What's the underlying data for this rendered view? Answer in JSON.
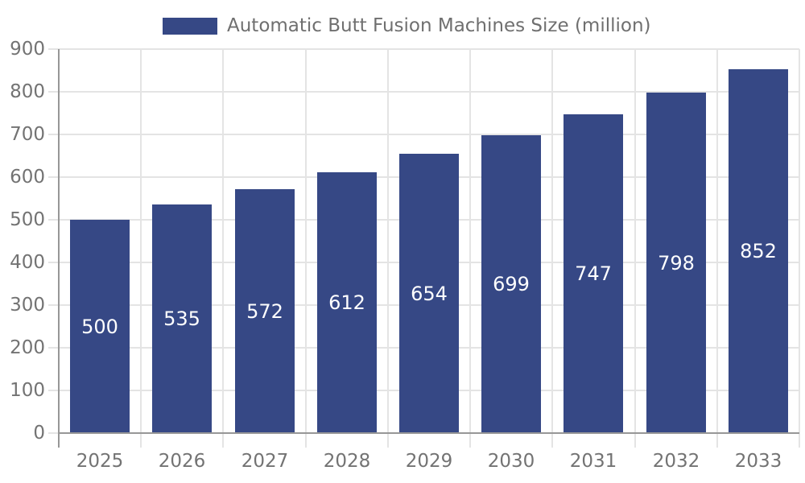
{
  "legend": {
    "label": "Automatic Butt Fusion Machines Size (million)"
  },
  "chart_data": {
    "type": "bar",
    "title": "Automatic Butt Fusion Machines Size (million)",
    "series_name": "Automatic Butt Fusion Machines Size (million)",
    "categories": [
      "2025",
      "2026",
      "2027",
      "2028",
      "2029",
      "2030",
      "2031",
      "2032",
      "2033"
    ],
    "values": [
      500,
      535,
      572,
      612,
      654,
      699,
      747,
      798,
      852
    ],
    "value_labels_shown": true,
    "xlabel": "",
    "ylabel": "",
    "ylim": [
      0,
      900
    ],
    "yticks": [
      0,
      100,
      200,
      300,
      400,
      500,
      600,
      700,
      800,
      900
    ],
    "grid": true,
    "legend_position": "top",
    "colors": {
      "bar": "#364885",
      "axis": "#979797",
      "grid": "#e4e4e4",
      "tick_label": "#737373",
      "value_label": "#ffffff"
    }
  }
}
